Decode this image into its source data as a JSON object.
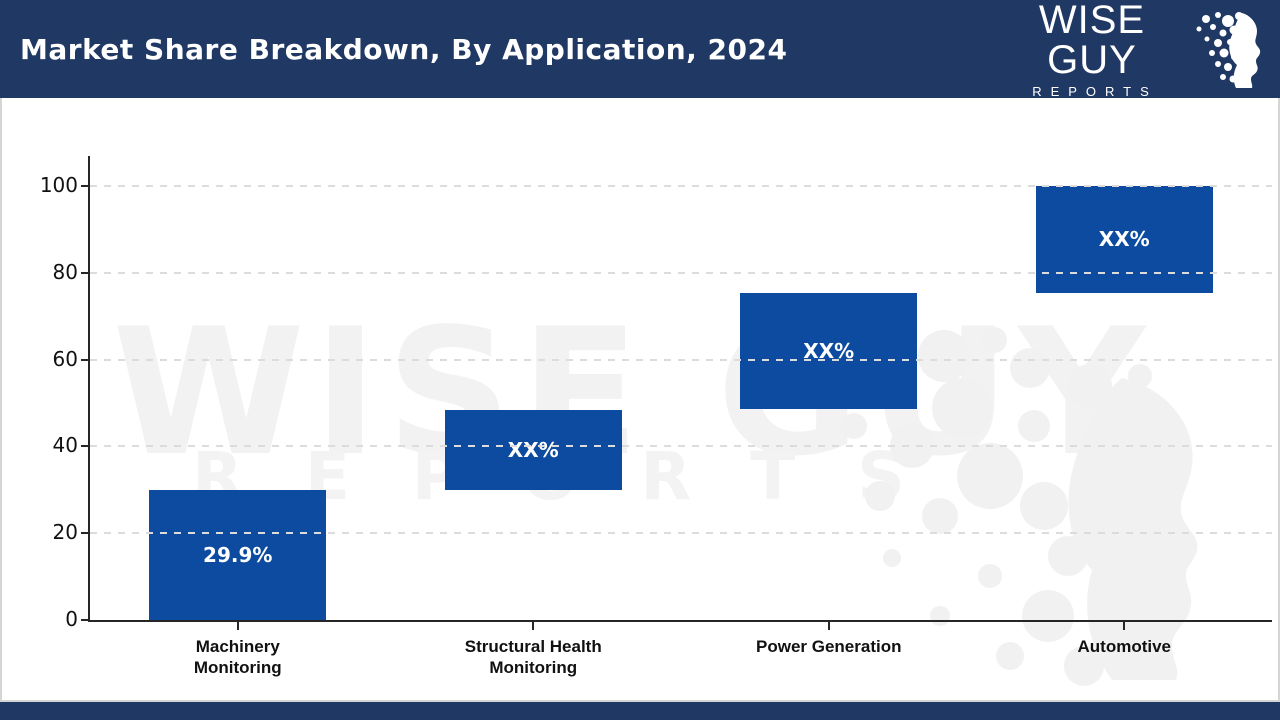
{
  "header": {
    "title": "Market Share Breakdown, By Application, 2024",
    "logo": {
      "line1": "WISE GUY",
      "line2": "REPORTS"
    }
  },
  "watermark": {
    "line1": "WISE GUY",
    "line2": "REPORTS"
  },
  "colors": {
    "header_navy": "#203864",
    "bar_blue": "#0c4ba0",
    "gridline": "#dcdcdc",
    "axis": "#262626",
    "watermark_gray": "#f2f2f3",
    "border_gray": "#d5d5d5",
    "bar_label_white": "#ffffff"
  },
  "chart_data": {
    "type": "bar",
    "subtype": "waterfall-floating-segments",
    "title": "Market Share Breakdown, By Application, 2024",
    "categories": [
      "Machinery Monitoring",
      "Structural Health Monitoring",
      "Power Generation",
      "Automotive"
    ],
    "category_label_lines": [
      [
        "Machinery",
        "Monitoring"
      ],
      [
        "Structural Health",
        "Monitoring"
      ],
      [
        "Power Generation"
      ],
      [
        "Automotive"
      ]
    ],
    "segments": [
      {
        "category": "Machinery Monitoring",
        "start": 0,
        "end": 29.9,
        "value": 29.9,
        "label": "29.9%"
      },
      {
        "category": "Structural Health Monitoring",
        "start": 29.9,
        "end": 48.5,
        "value": 18.6,
        "label": "XX%"
      },
      {
        "category": "Power Generation",
        "start": 48.5,
        "end": 75.4,
        "value": 26.9,
        "label": "XX%"
      },
      {
        "category": "Automotive",
        "start": 75.4,
        "end": 100,
        "value": 24.6,
        "label": "XX%"
      }
    ],
    "xlabel": "",
    "ylabel": "",
    "ylim": [
      0,
      100
    ],
    "yticks": [
      0,
      20,
      40,
      60,
      80,
      100
    ],
    "grid": "horizontal-dashed",
    "legend": "none",
    "bar_color": "#0c4ba0"
  }
}
